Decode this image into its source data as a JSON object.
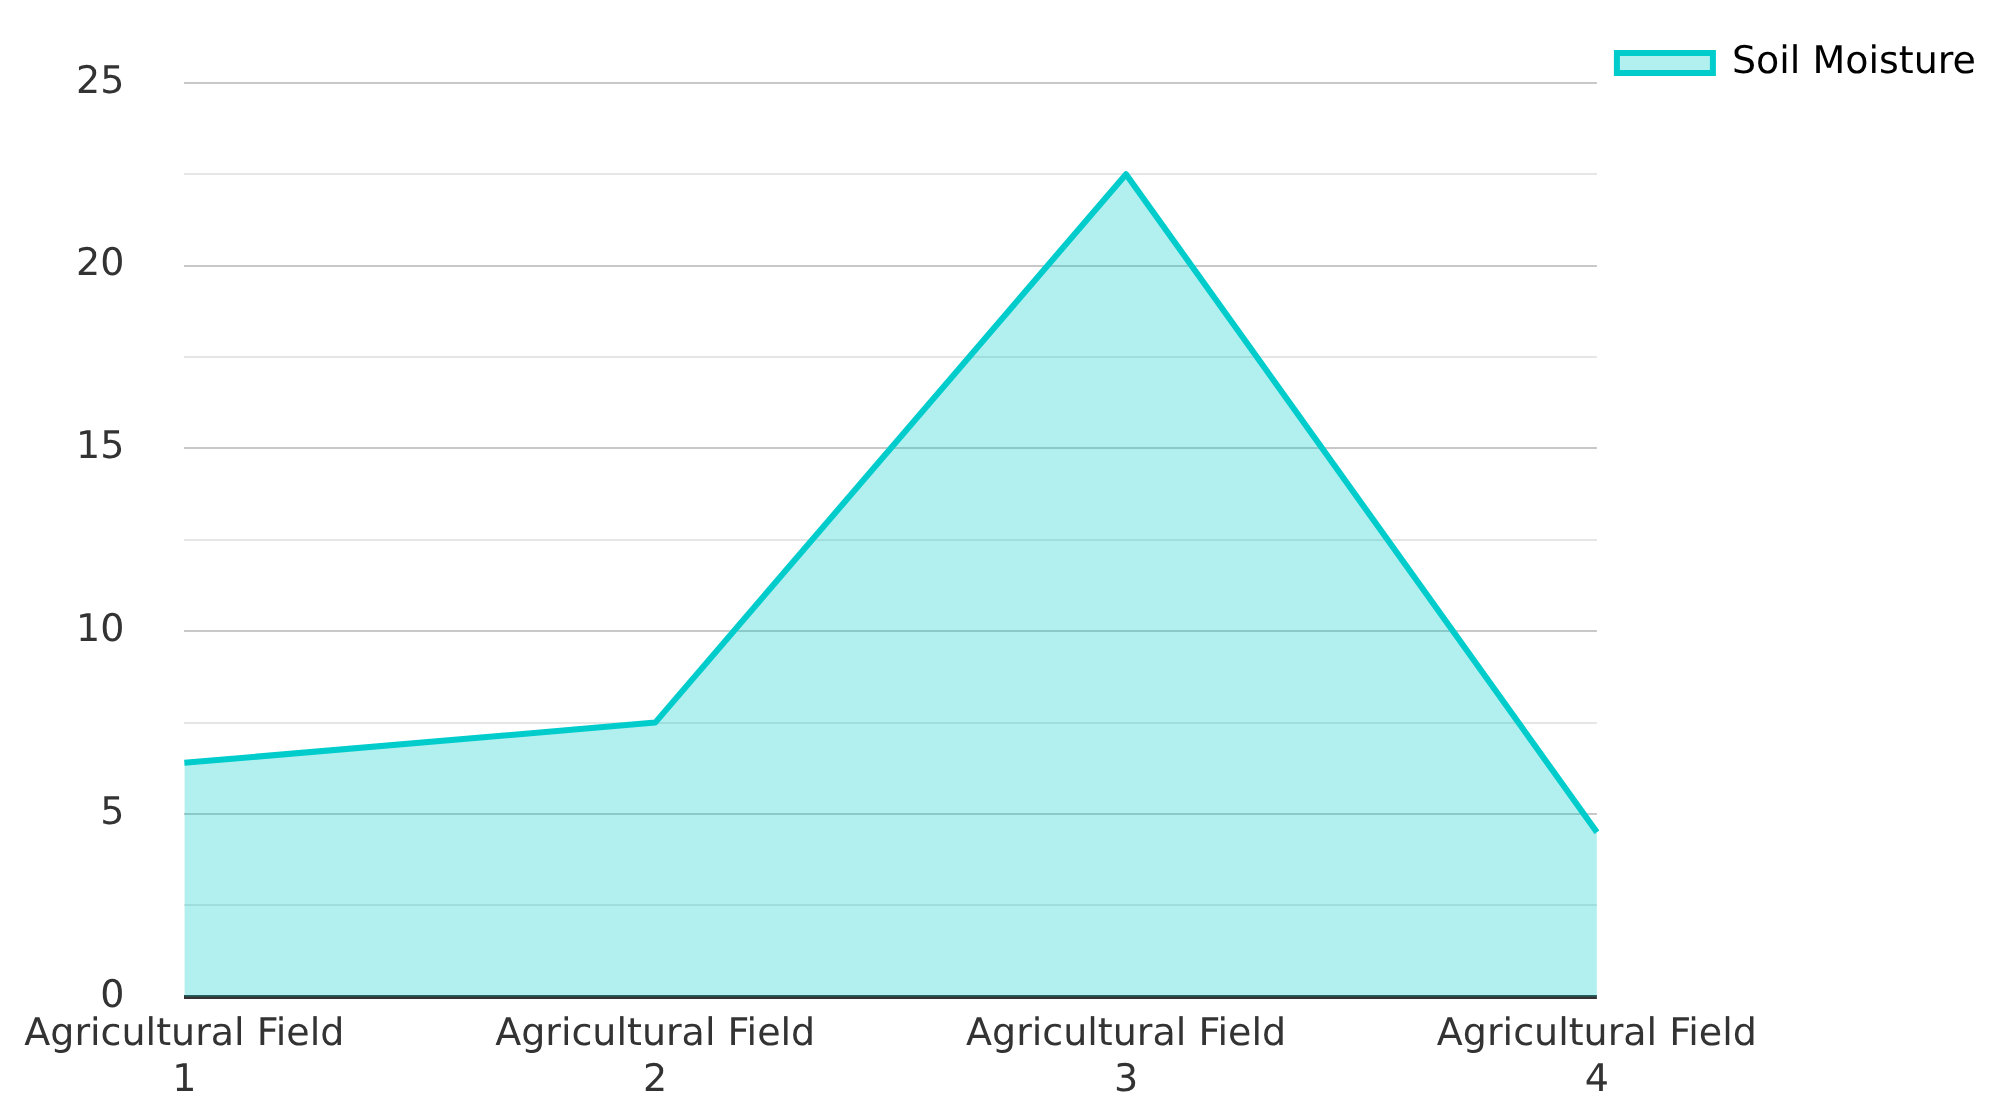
{
  "chart_data": {
    "type": "area",
    "categories": [
      "Agricultural Field 1",
      "Agricultural Field 2",
      "Agricultural Field 3",
      "Agricultural Field 4"
    ],
    "series": [
      {
        "name": "Soil Moisture",
        "color": "#00cccc",
        "values": [
          6.4,
          7.5,
          22.5,
          4.5
        ]
      }
    ],
    "ylim": [
      0,
      25
    ],
    "yticks": [
      0,
      {
        "value": 2.5,
        "label": null
      },
      5,
      {
        "value": 7.5,
        "label": null
      },
      10,
      {
        "value": 12.5,
        "label": null
      },
      15,
      {
        "value": 17.5,
        "label": null
      },
      20,
      {
        "value": 22.5,
        "label": null
      },
      25
    ],
    "grid": "y",
    "legend": "top right",
    "marker": "none",
    "line_style": "solid"
  }
}
